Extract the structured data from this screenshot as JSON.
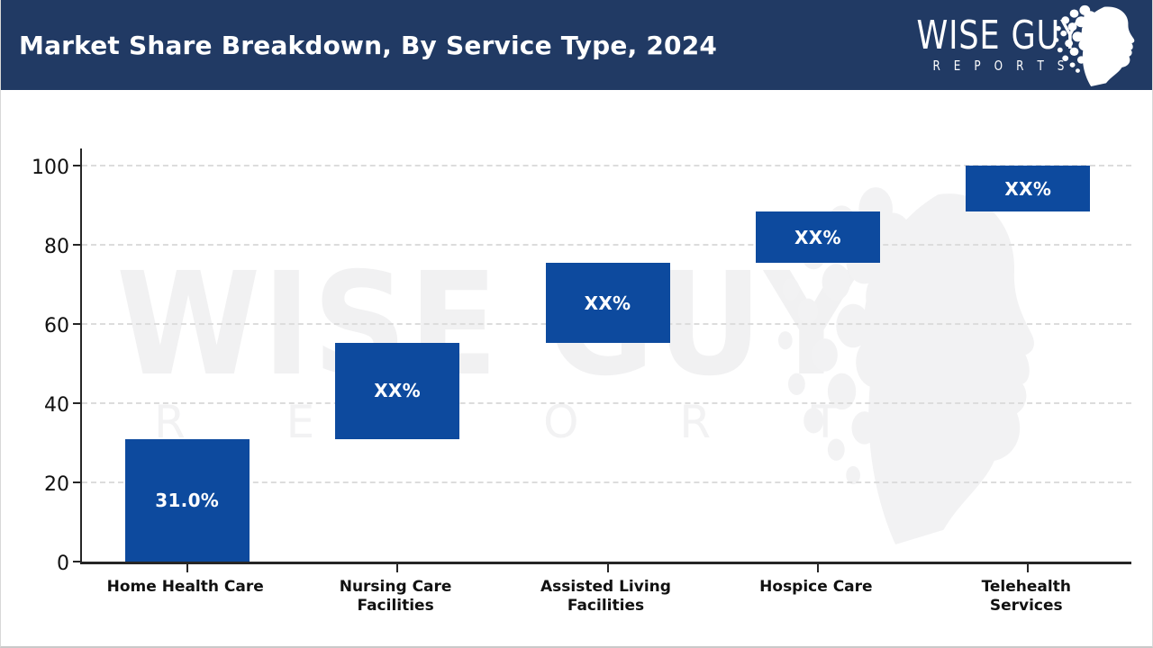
{
  "header": {
    "title": "Market Share Breakdown, By Service Type, 2024",
    "bg_color": "#213a64",
    "logo": {
      "line1": "WISE GUY",
      "line2": "R E P O R T S"
    }
  },
  "watermark": {
    "line1": "WISE GUY",
    "line2": "R E P O R T S"
  },
  "chart_data": {
    "type": "bar",
    "variant": "waterfall",
    "title": "Market Share Breakdown, By Service Type, 2024",
    "categories": [
      "Home Health Care",
      "Nursing Care\nFacilities",
      "Assisted Living\nFacilities",
      "Hospice Care",
      "Telehealth\nServices"
    ],
    "segments": [
      {
        "category": "Home Health Care",
        "start": 0,
        "end": 31.0,
        "label": "31.0%"
      },
      {
        "category": "Nursing Care Facilities",
        "start": 31.0,
        "end": 55.2,
        "label": "XX%"
      },
      {
        "category": "Assisted Living Facilities",
        "start": 55.2,
        "end": 75.4,
        "label": "XX%"
      },
      {
        "category": "Hospice Care",
        "start": 75.4,
        "end": 88.4,
        "label": "XX%"
      },
      {
        "category": "Telehealth Services",
        "start": 88.4,
        "end": 100.0,
        "label": "XX%"
      }
    ],
    "yticks": [
      0,
      20,
      40,
      60,
      80,
      100
    ],
    "ylim": [
      0,
      105
    ],
    "xlabel": "",
    "ylabel": "",
    "grid": "horizontal-dashed",
    "legend": "none",
    "bar_color": "#0d4a9e",
    "bar_label_color": "#ffffff"
  }
}
